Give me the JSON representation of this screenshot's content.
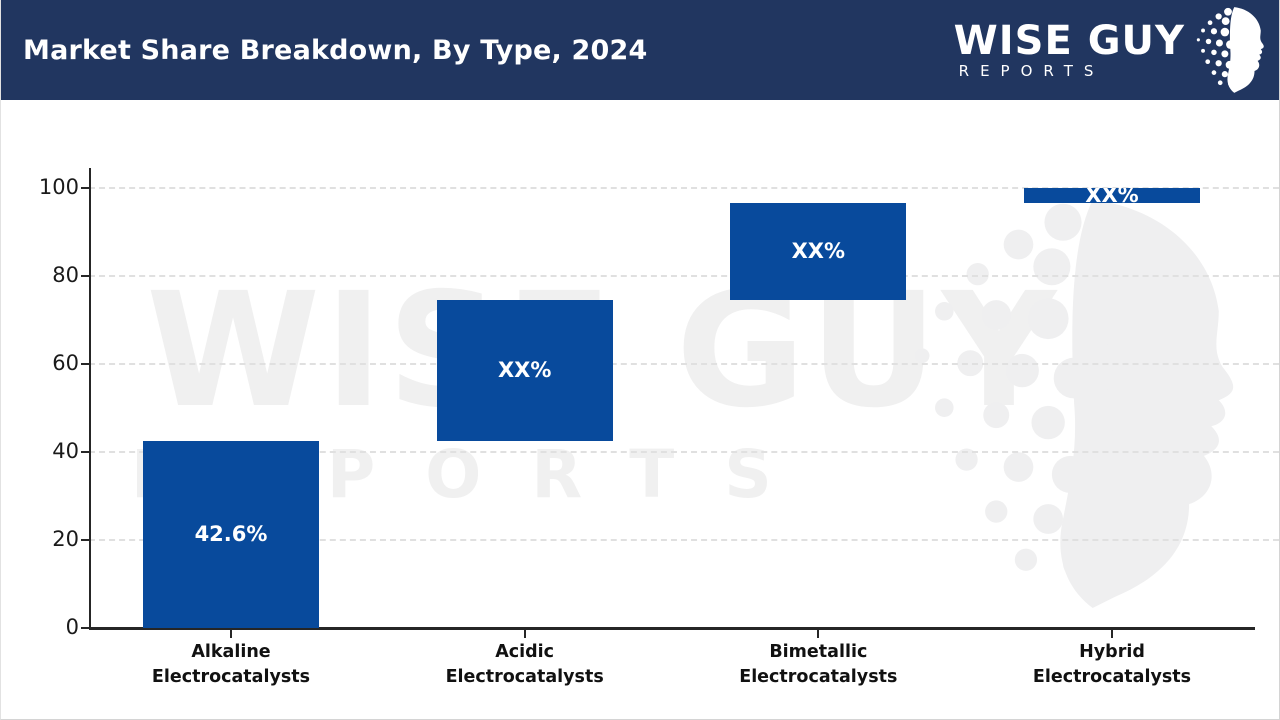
{
  "header": {
    "title": "Market Share Breakdown, By Type, 2024",
    "logo": {
      "brand_top": "WISE GUY",
      "brand_bottom": "REPORTS",
      "face_icon": "dotted-head-profile-icon"
    }
  },
  "watermark": {
    "line1": "WISE GUY",
    "line2": "REPORTS"
  },
  "chart_data": {
    "type": "bar",
    "subtype": "waterfall",
    "title": "Market Share Breakdown, By Type, 2024",
    "categories": [
      "Alkaline\nElectrocatalysts",
      "Acidic\nElectrocatalysts",
      "Bimetallic\nElectrocatalysts",
      "Hybrid\nElectrocatalysts"
    ],
    "segments": [
      {
        "category": "Alkaline Electrocatalysts",
        "start": 0,
        "end": 42.6,
        "label": "42.6%"
      },
      {
        "category": "Acidic Electrocatalysts",
        "start": 42.6,
        "end": 74.6,
        "label": "XX%"
      },
      {
        "category": "Bimetallic Electrocatalysts",
        "start": 74.6,
        "end": 96.5,
        "label": "XX%"
      },
      {
        "category": "Hybrid Electrocatalysts",
        "start": 96.5,
        "end": 100,
        "label": "XX%"
      }
    ],
    "y_ticks": [
      0,
      20,
      40,
      60,
      80,
      100
    ],
    "ylim": [
      0,
      100
    ],
    "xlabel": "",
    "ylabel": "",
    "grid": "dashed-horizontal",
    "legend": "none"
  },
  "colors": {
    "header_bg": "#213660",
    "bar": "#084A9C",
    "bar_label": "#ffffff",
    "grid": "#e0e0e0",
    "axis": "#262626",
    "watermark": "#f0f0f0",
    "frame_border": "#d4d4d4",
    "title_text": "#ffffff"
  }
}
